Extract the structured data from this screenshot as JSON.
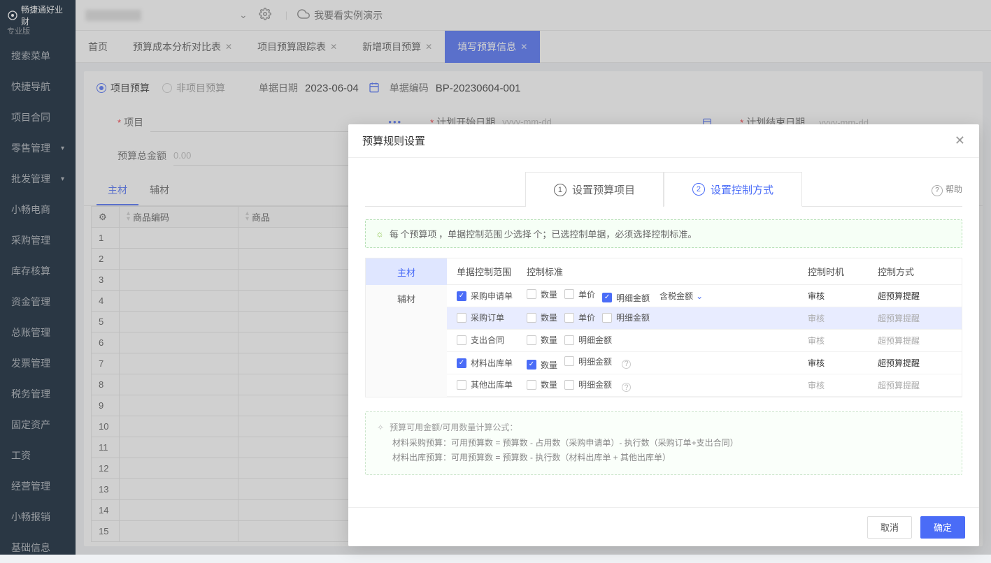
{
  "brand": {
    "name": "畅捷通好业财",
    "edition": "专业版"
  },
  "sidebar": {
    "items": [
      {
        "label": "搜索菜单",
        "arrow": false
      },
      {
        "label": "快捷导航",
        "arrow": false
      },
      {
        "label": "项目合同",
        "arrow": false
      },
      {
        "label": "零售管理",
        "arrow": true
      },
      {
        "label": "批发管理",
        "arrow": true
      },
      {
        "label": "小畅电商",
        "arrow": false
      },
      {
        "label": "采购管理",
        "arrow": false
      },
      {
        "label": "库存核算",
        "arrow": false
      },
      {
        "label": "资金管理",
        "arrow": false
      },
      {
        "label": "总账管理",
        "arrow": false
      },
      {
        "label": "发票管理",
        "arrow": false
      },
      {
        "label": "税务管理",
        "arrow": false
      },
      {
        "label": "固定资产",
        "arrow": false
      },
      {
        "label": "工资",
        "arrow": false
      },
      {
        "label": "经营管理",
        "arrow": false
      },
      {
        "label": "小畅报销",
        "arrow": false
      },
      {
        "label": "基础信息",
        "arrow": false
      }
    ]
  },
  "topbar": {
    "demo": "我要看实例演示"
  },
  "tabs": [
    {
      "label": "首页",
      "closable": false,
      "active": false
    },
    {
      "label": "预算成本分析对比表",
      "closable": true,
      "active": false
    },
    {
      "label": "项目预算跟踪表",
      "closable": true,
      "active": false
    },
    {
      "label": "新增项目预算",
      "closable": true,
      "active": false
    },
    {
      "label": "填写预算信息",
      "closable": true,
      "active": true
    }
  ],
  "form": {
    "radio1": "项目预算",
    "radio2": "非项目预算",
    "billDateLabel": "单据日期",
    "billDate": "2023-06-04",
    "billNoLabel": "单据编码",
    "billNo": "BP-20230604-001",
    "projectLabel": "项目",
    "planStartLabel": "计划开始日期",
    "planStartPlaceholder": "yyyy-mm-dd",
    "planEndLabel": "计划结束日期",
    "planEndPlaceholder": "yyyy-mm-dd",
    "totalLabel": "预算总金额",
    "totalValue": "0.00"
  },
  "subtabs": {
    "a": "主材",
    "b": "辅材"
  },
  "table": {
    "col1": "商品编码",
    "col2": "商品",
    "rowCount": 15
  },
  "modal": {
    "title": "预算规则设置",
    "step1": "设置预算项目",
    "step2": "设置控制方式",
    "help": "帮助",
    "tip": "每 个预算项 ，单据控制范围 少选择 个；已选控制单据，必须选择控制标准。",
    "sideA": "主材",
    "sideB": "辅材",
    "head": {
      "c1": "单据控制范围",
      "c2": "控制标准",
      "c3": "控制时机",
      "c4": "控制方式"
    },
    "rows": [
      {
        "name": "采购申请单",
        "doc_on": true,
        "opts": [
          {
            "l": "数量",
            "on": false
          },
          {
            "l": "单价",
            "on": false
          },
          {
            "l": "明细金额",
            "on": true
          }
        ],
        "extra": "含税金额",
        "dd": true,
        "timing": "审核",
        "method": "超预算提醒",
        "hl": false,
        "dim": false
      },
      {
        "name": "采购订单",
        "doc_on": false,
        "opts": [
          {
            "l": "数量",
            "on": false
          },
          {
            "l": "单价",
            "on": false
          },
          {
            "l": "明细金额",
            "on": false
          }
        ],
        "extra": "",
        "dd": false,
        "timing": "审核",
        "method": "超预算提醒",
        "hl": true,
        "dim": true
      },
      {
        "name": "支出合同",
        "doc_on": false,
        "opts": [
          {
            "l": "数量",
            "on": false
          },
          {
            "l": "明细金额",
            "on": false
          }
        ],
        "extra": "",
        "dd": false,
        "timing": "审核",
        "method": "超预算提醒",
        "hl": false,
        "dim": true
      },
      {
        "name": "材料出库单",
        "doc_on": true,
        "opts": [
          {
            "l": "数量",
            "on": true
          },
          {
            "l": "明细金额",
            "on": false
          }
        ],
        "extra": "",
        "dd": false,
        "info": true,
        "timing": "审核",
        "method": "超预算提醒",
        "hl": false,
        "dim": false
      },
      {
        "name": "其他出库单",
        "doc_on": false,
        "opts": [
          {
            "l": "数量",
            "on": false
          },
          {
            "l": "明细金额",
            "on": false
          }
        ],
        "extra": "",
        "dd": false,
        "info": true,
        "timing": "审核",
        "method": "超预算提醒",
        "hl": false,
        "dim": true
      }
    ],
    "formula": {
      "title": "预算可用金额/可用数量计算公式：",
      "line1": "材料采购预算：可用预算数 = 预算数 - 占用数（采购申请单）- 执行数（采购订单+支出合同）",
      "line2": "材料出库预算：可用预算数 = 预算数 - 执行数（材料出库单 + 其他出库单）"
    },
    "cancel": "取消",
    "ok": "确定"
  }
}
